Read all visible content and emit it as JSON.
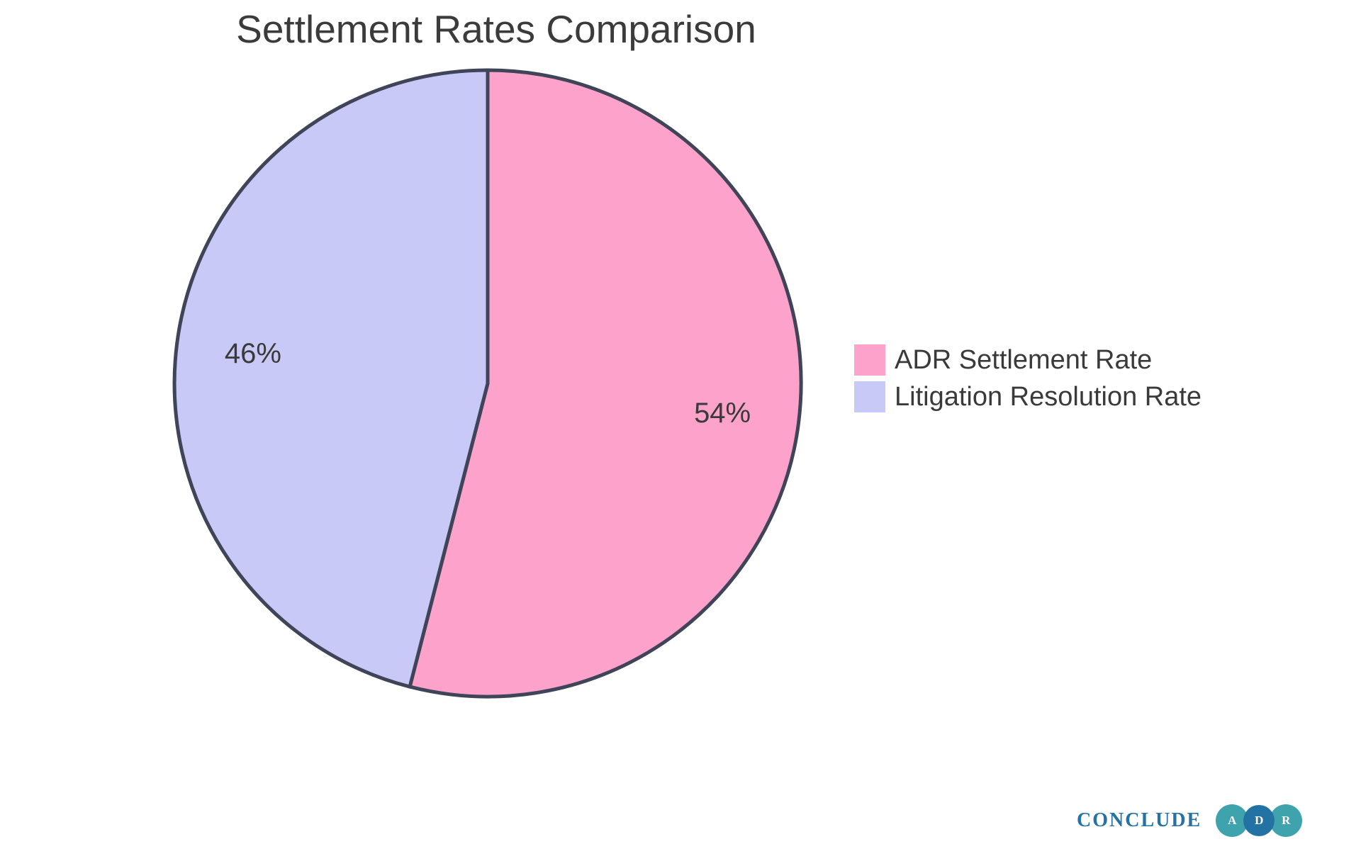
{
  "chart_data": {
    "type": "pie",
    "title": "Settlement Rates Comparison",
    "categories": [
      "ADR Settlement Rate",
      "Litigation Resolution Rate"
    ],
    "values": [
      54,
      46
    ],
    "slices": [
      {
        "label": "ADR Settlement Rate",
        "value": 54,
        "display_label": "54%",
        "color": "#FDA3CB"
      },
      {
        "label": "Litigation Resolution Rate",
        "value": 46,
        "display_label": "46%",
        "color": "#C9C9F7"
      }
    ],
    "start": "top",
    "direction": "clockwise",
    "slice_border_color": "#3F4458",
    "slice_label_color": "#3A3A3A",
    "title_color": "#3B3B3B",
    "legend_position": "right",
    "legend_text_color": "#3A3A3A"
  },
  "branding": {
    "wordmark": "CONCLUDE",
    "wordmark_color": "#2472A6",
    "badge_letter_color": "#FFFFFF",
    "badges": [
      {
        "letter": "A",
        "color": "#3FA3AD"
      },
      {
        "letter": "D",
        "color": "#2372A4"
      },
      {
        "letter": "R",
        "color": "#3FA3AD"
      }
    ]
  }
}
